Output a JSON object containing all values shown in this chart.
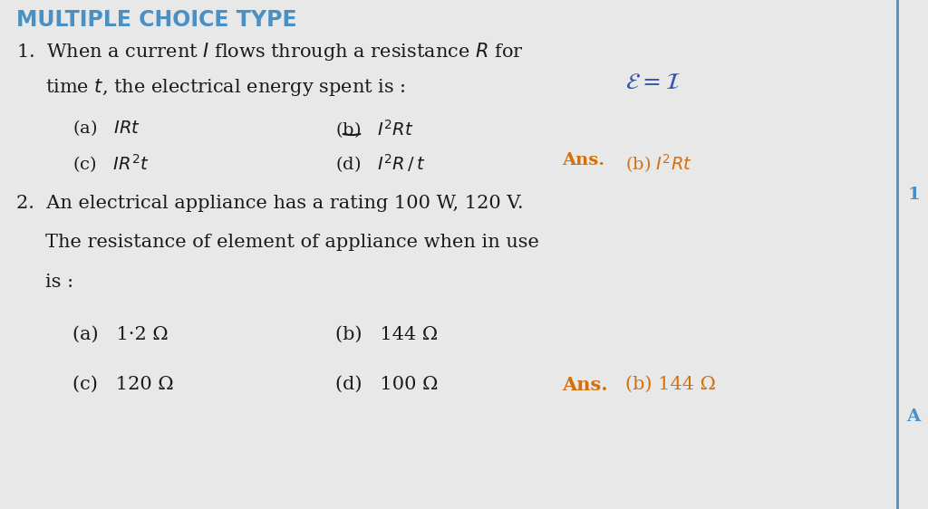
{
  "background_color": "#e8e8e8",
  "title": "MULTIPLE CHOICE TYPE",
  "title_color": "#4a90c4",
  "title_fontsize": 17,
  "ans_color": "#d4700a",
  "text_color": "#1a1a1a",
  "border_line_color": "#4a90c4",
  "side_number_color": "#4a90c4",
  "q1_line1": "1.  When a current $I$ flows through a resistance $R$ for",
  "q1_line2": "time $t$, the electrical energy spent is :",
  "q1_a": "(a)   $IRt$",
  "q1_b": "(b)   $I^2Rt$",
  "q1_c": "(c)   $IR^2t$",
  "q1_d": "(d)   $I^2R\\,/\\,t$",
  "q1_ans_label": "Ans.",
  "q1_ans_val": "(b) $I^2Rt$",
  "q2_line1": "2.  An electrical appliance has a rating 100 W, 120 V.",
  "q2_line2": "The resistance of element of appliance when in use",
  "q2_line3": "is :",
  "q2_a": "(a)   1·2 Ω",
  "q2_b": "(b)   144 Ω",
  "q2_c": "(c)   120 Ω",
  "q2_d": "(d)   100 Ω",
  "q2_ans_label": "Ans.",
  "q2_ans_val": "(b) 144 Ω",
  "side_num1": "1",
  "side_num2": "A"
}
